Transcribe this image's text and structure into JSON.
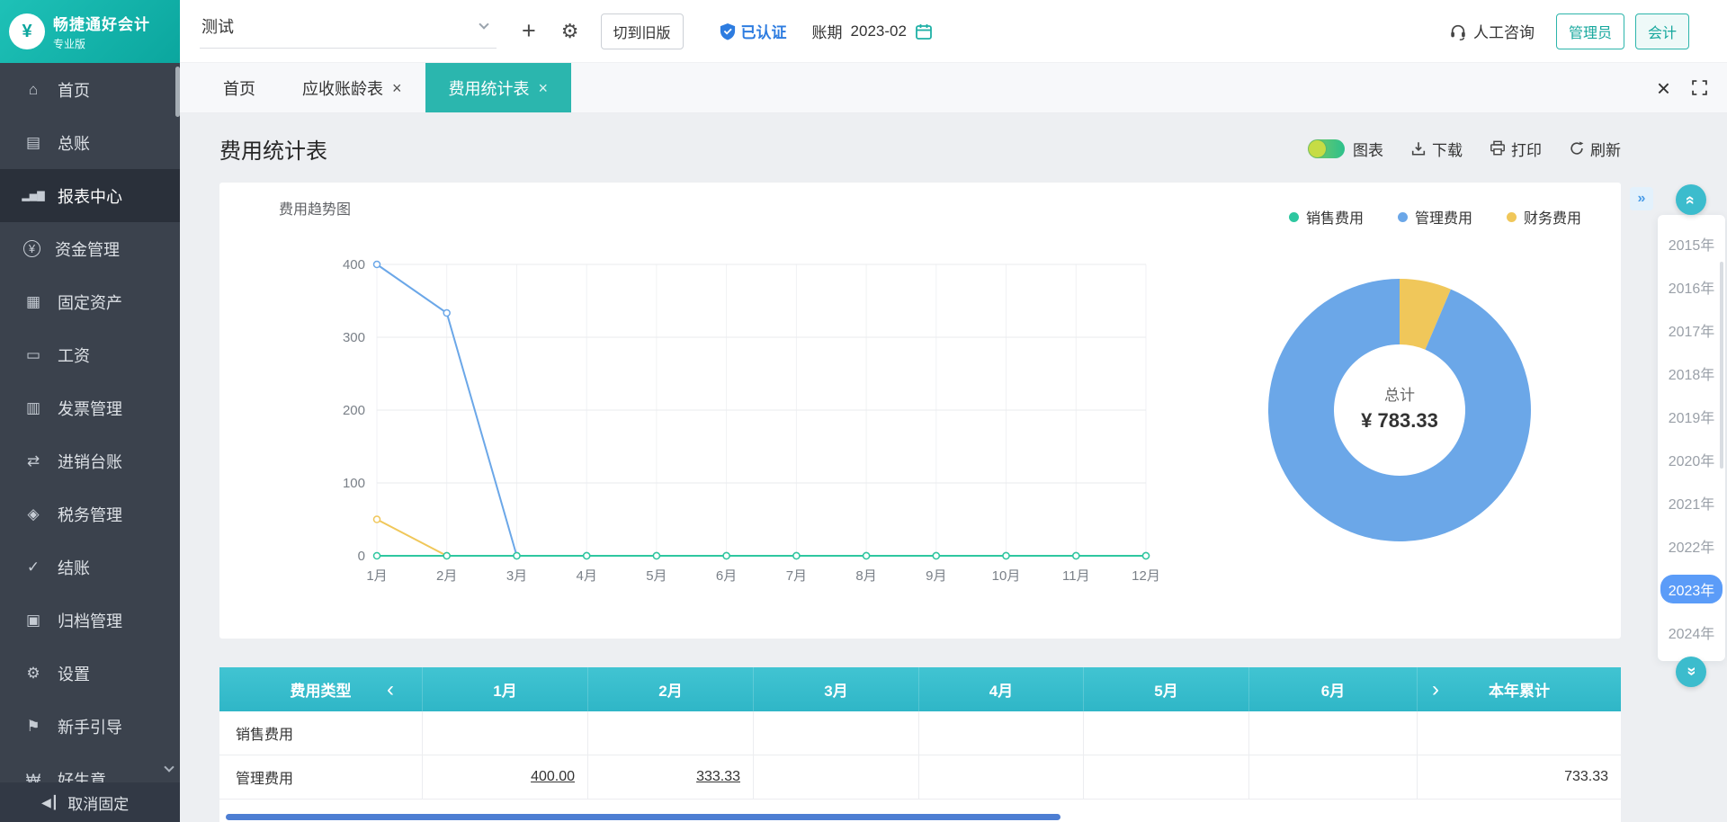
{
  "sidebar": {
    "logo_title": "畅捷通好会计",
    "logo_subtitle": "专业版",
    "unpin_label": "取消固定",
    "items": [
      {
        "id": "home",
        "label": "首页",
        "icon": "home-icon",
        "active": false
      },
      {
        "id": "general-ledger",
        "label": "总账",
        "icon": "ledger-icon",
        "active": false
      },
      {
        "id": "report-center",
        "label": "报表中心",
        "icon": "report-icon",
        "active": true
      },
      {
        "id": "fund-management",
        "label": "资金管理",
        "icon": "fund-icon",
        "active": false
      },
      {
        "id": "fixed-assets",
        "label": "固定资产",
        "icon": "asset-icon",
        "active": false
      },
      {
        "id": "salary",
        "label": "工资",
        "icon": "salary-icon",
        "active": false
      },
      {
        "id": "invoice-management",
        "label": "发票管理",
        "icon": "invoice-icon",
        "active": false
      },
      {
        "id": "purchase-sales-ledger",
        "label": "进销台账",
        "icon": "trade-icon",
        "active": false
      },
      {
        "id": "tax-management",
        "label": "税务管理",
        "icon": "tax-icon",
        "active": false
      },
      {
        "id": "closing",
        "label": "结账",
        "icon": "closing-icon",
        "active": false
      },
      {
        "id": "archive-management",
        "label": "归档管理",
        "icon": "archive-icon",
        "active": false
      },
      {
        "id": "settings",
        "label": "设置",
        "icon": "settings-icon",
        "active": false
      },
      {
        "id": "beginner-guide",
        "label": "新手引导",
        "icon": "guide-icon",
        "active": false
      },
      {
        "id": "haoshengyi",
        "label": "好生意",
        "icon": "partner-icon",
        "active": false
      }
    ]
  },
  "topbar": {
    "company": "测试",
    "switch_old": "切到旧版",
    "certified": "已认证",
    "period_label": "账期",
    "period_value": "2023-02",
    "consult": "人工咨询",
    "admin": "管理员",
    "accountant": "会计"
  },
  "tabs": [
    {
      "label": "首页",
      "closable": false,
      "active": false
    },
    {
      "label": "应收账龄表",
      "closable": true,
      "active": false
    },
    {
      "label": "费用统计表",
      "closable": true,
      "active": true
    }
  ],
  "page": {
    "title": "费用统计表",
    "toggle_label": "图表",
    "download": "下载",
    "print": "打印",
    "refresh": "刷新"
  },
  "chart_data": [
    {
      "type": "line",
      "title": "费用趋势图",
      "categories": [
        "1月",
        "2月",
        "3月",
        "4月",
        "5月",
        "6月",
        "7月",
        "8月",
        "9月",
        "10月",
        "11月",
        "12月"
      ],
      "series": [
        {
          "name": "销售费用",
          "color": "#2ec7a0",
          "values": [
            0,
            0,
            0,
            0,
            0,
            0,
            0,
            0,
            0,
            0,
            0,
            0
          ]
        },
        {
          "name": "管理费用",
          "color": "#6ba7e8",
          "values": [
            400,
            333.33,
            0,
            0,
            0,
            0,
            0,
            0,
            0,
            0,
            0,
            0
          ]
        },
        {
          "name": "财务费用",
          "color": "#f0c75a",
          "values": [
            50,
            0,
            0,
            0,
            0,
            0,
            0,
            0,
            0,
            0,
            0,
            0
          ]
        }
      ],
      "ylim": [
        0,
        400
      ],
      "yticks": [
        0,
        100,
        200,
        300,
        400
      ],
      "grid": true,
      "legend_position": "top-right"
    },
    {
      "type": "pie",
      "subtype": "donut",
      "center_label": "总计",
      "center_value": "¥ 783.33",
      "total": 783.33,
      "slices": [
        {
          "name": "财务费用",
          "value": 50,
          "color": "#f0c75a"
        },
        {
          "name": "管理费用",
          "value": 733.33,
          "color": "#6ba7e8"
        },
        {
          "name": "销售费用",
          "value": 0,
          "color": "#2ec7a0"
        }
      ]
    }
  ],
  "table": {
    "columns": [
      "费用类型",
      "1月",
      "2月",
      "3月",
      "4月",
      "5月",
      "6月",
      "本年累计"
    ],
    "rows": [
      {
        "label": "销售费用",
        "cells": [
          "",
          "",
          "",
          "",
          "",
          "",
          ""
        ],
        "underlined": []
      },
      {
        "label": "管理费用",
        "cells": [
          "400.00",
          "333.33",
          "",
          "",
          "",
          "",
          "733.33"
        ],
        "underlined": [
          0,
          1
        ]
      }
    ]
  },
  "year_panel": {
    "years": [
      "2015年",
      "2016年",
      "2017年",
      "2018年",
      "2019年",
      "2020年",
      "2021年",
      "2022年",
      "2023年",
      "2024年"
    ],
    "active": "2023年"
  },
  "colors": {
    "accent_teal": "#2bb6ae",
    "sidebar_bg": "#3b424d",
    "table_header": "#35bac9",
    "year_active": "#5b9cf8",
    "scroll_thumb": "#4d7ed3",
    "certified_blue": "#2d7ce0"
  }
}
